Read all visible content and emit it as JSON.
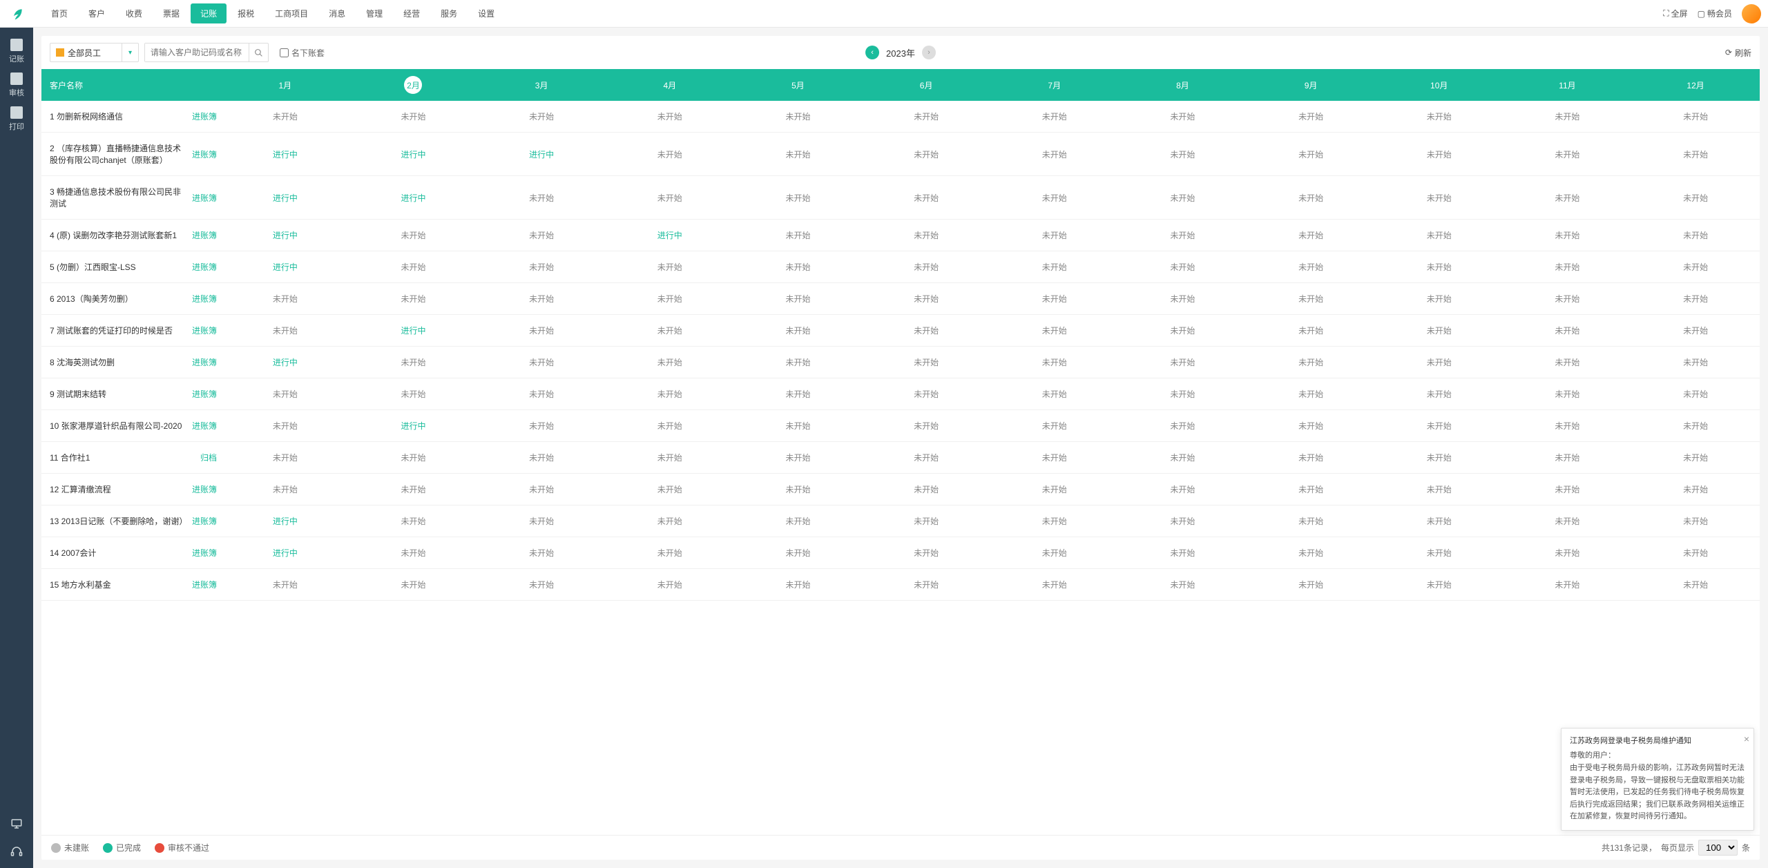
{
  "topnav": {
    "items": [
      "首页",
      "客户",
      "收费",
      "票据",
      "记账",
      "报税",
      "工商项目",
      "消息",
      "管理",
      "经营",
      "服务",
      "设置"
    ],
    "activeIndex": 4,
    "fullscreen": "全屏",
    "member": "畅会员"
  },
  "sidebar": {
    "items": [
      {
        "label": "记账",
        "icon": "ledger-icon"
      },
      {
        "label": "审核",
        "icon": "review-icon"
      },
      {
        "label": "打印",
        "icon": "print-icon"
      }
    ]
  },
  "toolbar": {
    "employeeSelect": "全部员工",
    "searchPlaceholder": "请输入客户助记码或名称",
    "nameCheckboxLabel": "名下账套",
    "year": "2023年",
    "refresh": "刷新"
  },
  "table": {
    "clientHeader": "客户名称",
    "months": [
      "1月",
      "2月",
      "3月",
      "4月",
      "5月",
      "6月",
      "7月",
      "8月",
      "9月",
      "10月",
      "11月",
      "12月"
    ],
    "activeMonthIndex": 1,
    "linkLabel": "进账簿",
    "archiveLabel": "归档",
    "statusNotStarted": "未开始",
    "statusInProgress": "进行中",
    "rows": [
      {
        "idx": "1",
        "name": "勿删新税网络通信",
        "link": "进账簿",
        "cells": [
          "未开始",
          "未开始",
          "未开始",
          "未开始",
          "未开始",
          "未开始",
          "未开始",
          "未开始",
          "未开始",
          "未开始",
          "未开始",
          "未开始"
        ]
      },
      {
        "idx": "2",
        "name": "（库存核算）直播畅捷通信息技术股份有限公司chanjet（原账套）",
        "link": "进账簿",
        "cells": [
          "进行中",
          "进行中",
          "进行中",
          "未开始",
          "未开始",
          "未开始",
          "未开始",
          "未开始",
          "未开始",
          "未开始",
          "未开始",
          "未开始"
        ]
      },
      {
        "idx": "3",
        "name": "畅捷通信息技术股份有限公司民非测试",
        "link": "进账簿",
        "cells": [
          "进行中",
          "进行中",
          "未开始",
          "未开始",
          "未开始",
          "未开始",
          "未开始",
          "未开始",
          "未开始",
          "未开始",
          "未开始",
          "未开始"
        ]
      },
      {
        "idx": "4",
        "name": "(原) 误删勿改李艳芬测试账套新1",
        "link": "进账簿",
        "cells": [
          "进行中",
          "未开始",
          "未开始",
          "进行中",
          "未开始",
          "未开始",
          "未开始",
          "未开始",
          "未开始",
          "未开始",
          "未开始",
          "未开始"
        ]
      },
      {
        "idx": "5",
        "name": "(勿删）江西眼宝-LSS",
        "link": "进账簿",
        "cells": [
          "进行中",
          "未开始",
          "未开始",
          "未开始",
          "未开始",
          "未开始",
          "未开始",
          "未开始",
          "未开始",
          "未开始",
          "未开始",
          "未开始"
        ]
      },
      {
        "idx": "6",
        "name": "2013（陶美芳勿删）",
        "link": "进账簿",
        "cells": [
          "未开始",
          "未开始",
          "未开始",
          "未开始",
          "未开始",
          "未开始",
          "未开始",
          "未开始",
          "未开始",
          "未开始",
          "未开始",
          "未开始"
        ]
      },
      {
        "idx": "7",
        "name": "测试账套的凭证打印的时候是否",
        "link": "进账簿",
        "cells": [
          "未开始",
          "进行中",
          "未开始",
          "未开始",
          "未开始",
          "未开始",
          "未开始",
          "未开始",
          "未开始",
          "未开始",
          "未开始",
          "未开始"
        ]
      },
      {
        "idx": "8",
        "name": "沈海英测试勿删",
        "link": "进账簿",
        "cells": [
          "进行中",
          "未开始",
          "未开始",
          "未开始",
          "未开始",
          "未开始",
          "未开始",
          "未开始",
          "未开始",
          "未开始",
          "未开始",
          "未开始"
        ]
      },
      {
        "idx": "9",
        "name": "测试期末结转",
        "link": "进账簿",
        "cells": [
          "未开始",
          "未开始",
          "未开始",
          "未开始",
          "未开始",
          "未开始",
          "未开始",
          "未开始",
          "未开始",
          "未开始",
          "未开始",
          "未开始"
        ]
      },
      {
        "idx": "10",
        "name": "张家港厚道针织品有限公司-2020",
        "link": "进账簿",
        "cells": [
          "未开始",
          "进行中",
          "未开始",
          "未开始",
          "未开始",
          "未开始",
          "未开始",
          "未开始",
          "未开始",
          "未开始",
          "未开始",
          "未开始"
        ]
      },
      {
        "idx": "11",
        "name": "合作社1",
        "link": "归档",
        "cells": [
          "未开始",
          "未开始",
          "未开始",
          "未开始",
          "未开始",
          "未开始",
          "未开始",
          "未开始",
          "未开始",
          "未开始",
          "未开始",
          "未开始"
        ]
      },
      {
        "idx": "12",
        "name": "汇算清缴流程",
        "link": "进账簿",
        "cells": [
          "未开始",
          "未开始",
          "未开始",
          "未开始",
          "未开始",
          "未开始",
          "未开始",
          "未开始",
          "未开始",
          "未开始",
          "未开始",
          "未开始"
        ]
      },
      {
        "idx": "13",
        "name": "2013日记账（不要删除哈，谢谢）",
        "link": "进账簿",
        "cells": [
          "进行中",
          "未开始",
          "未开始",
          "未开始",
          "未开始",
          "未开始",
          "未开始",
          "未开始",
          "未开始",
          "未开始",
          "未开始",
          "未开始"
        ]
      },
      {
        "idx": "14",
        "name": "2007会计",
        "link": "进账簿",
        "cells": [
          "进行中",
          "未开始",
          "未开始",
          "未开始",
          "未开始",
          "未开始",
          "未开始",
          "未开始",
          "未开始",
          "未开始",
          "未开始",
          "未开始"
        ]
      },
      {
        "idx": "15",
        "name": "地方水利基金",
        "link": "进账簿",
        "cells": [
          "未开始",
          "未开始",
          "未开始",
          "未开始",
          "未开始",
          "未开始",
          "未开始",
          "未开始",
          "未开始",
          "未开始",
          "未开始",
          "未开始"
        ]
      }
    ]
  },
  "footer": {
    "legend": [
      {
        "color": "gray",
        "label": "未建账"
      },
      {
        "color": "green",
        "label": "已完成"
      },
      {
        "color": "red",
        "label": "审核不通过"
      }
    ],
    "totalLabel": "共131条记录，",
    "pageSizeLabel": "每页显示",
    "pageSize": "100",
    "perUnit": "条"
  },
  "notif": {
    "title": "江苏政务网登录电子税务局维护通知",
    "line1": "尊敬的用户：",
    "body": "由于受电子税务局升级的影响，江苏政务网暂时无法登录电子税务局，导致一键报税与无盘取票相关功能暂时无法使用，已发起的任务我们待电子税务局恢复后执行完成返回结果；我们已联系政务网相关运维正在加紧修复，恢复时间待另行通知。"
  },
  "colors": {
    "primary": "#1abc9c",
    "sidebarBg": "#2c3e50",
    "textMuted": "#888"
  }
}
